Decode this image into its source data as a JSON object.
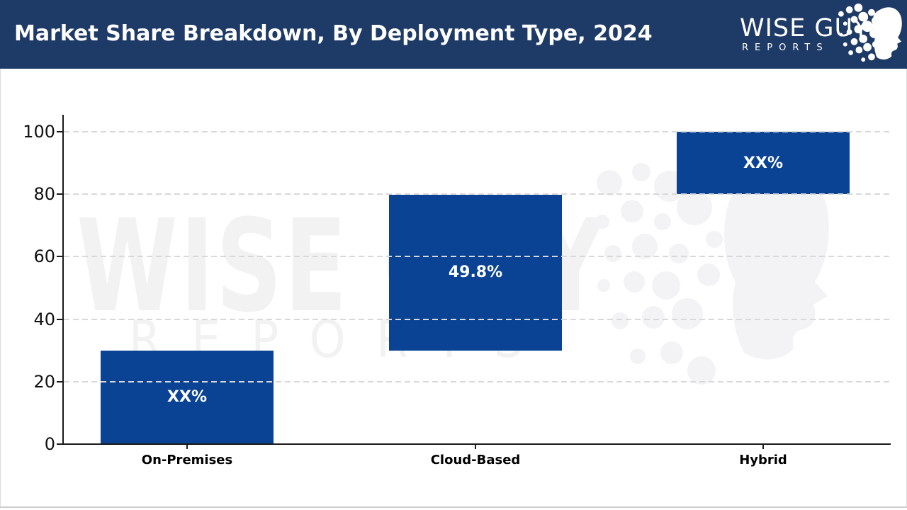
{
  "header": {
    "title": "Market Share Breakdown, By Deployment Type, 2024",
    "logo": {
      "brand_line1": "WISE GUY",
      "brand_line2": "REPORTS"
    }
  },
  "watermark": {
    "line1": "WISE GUY",
    "line2": "REPORTS"
  },
  "colors": {
    "header_bg": "#1e3a66",
    "bar_fill": "#0a4294",
    "bar_label_text": "#ffffff",
    "grid_line": "#d8d8d8",
    "axis_line": "#1a1a1a",
    "watermark": "#f2f2f3"
  },
  "chart_data": {
    "type": "bar",
    "subtype": "waterfall",
    "title": "Market Share Breakdown, By Deployment Type, 2024",
    "xlabel": "",
    "ylabel": "",
    "categories": [
      "On-Premises",
      "Cloud-Based",
      "Hybrid"
    ],
    "bars": [
      {
        "category": "On-Premises",
        "start": 0,
        "end": 30,
        "value_label": "XX%"
      },
      {
        "category": "Cloud-Based",
        "start": 30,
        "end": 79.8,
        "value_label": "49.8%"
      },
      {
        "category": "Hybrid",
        "start": 80,
        "end": 100,
        "value_label": "XX%"
      }
    ],
    "yticks": [
      0,
      20,
      40,
      60,
      80,
      100
    ],
    "ylim": [
      0,
      105
    ],
    "grid": "horizontal-dashed",
    "legend": "none"
  }
}
